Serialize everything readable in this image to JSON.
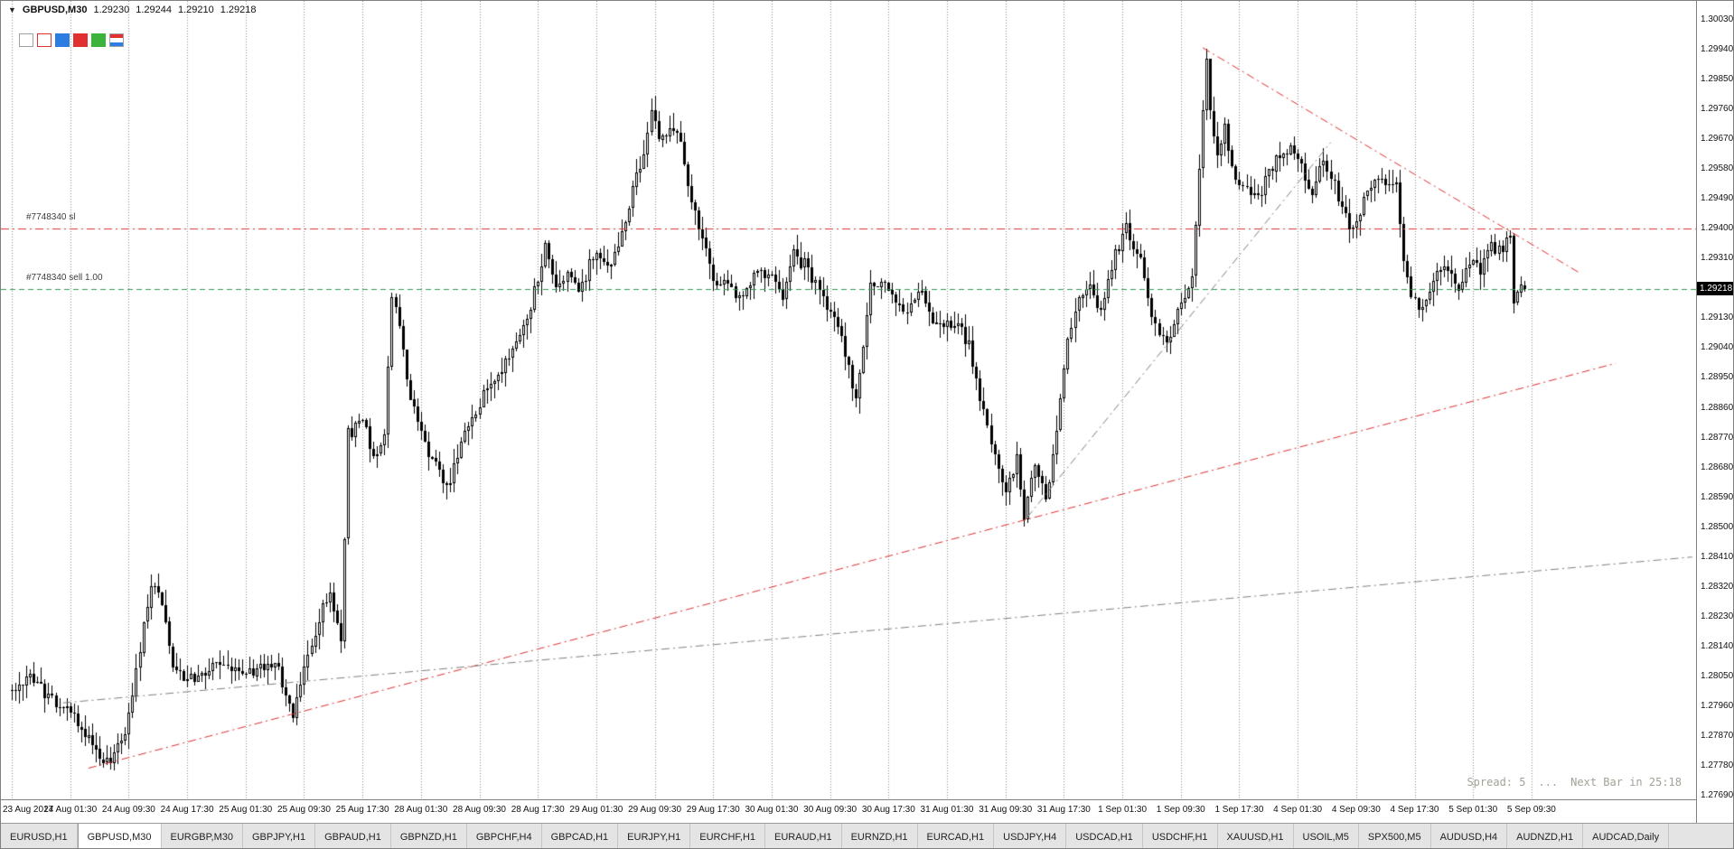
{
  "header": {
    "collapse_icon": "▼",
    "symbol_period": "GBPUSD,M30",
    "open": "1.29230",
    "high": "1.29244",
    "low": "1.29210",
    "close": "1.29218"
  },
  "swatches": [
    {
      "name": "swatch-white",
      "type": "solid",
      "fill": "#ffffff",
      "border": "#a0a0a0"
    },
    {
      "name": "swatch-red-outline",
      "type": "solid",
      "fill": "#ffffff",
      "border": "#e03030"
    },
    {
      "name": "swatch-blue",
      "type": "solid",
      "fill": "#2b7de1",
      "border": "#2b7de1"
    },
    {
      "name": "swatch-red",
      "type": "solid",
      "fill": "#e03030",
      "border": "#e03030"
    },
    {
      "name": "swatch-green",
      "type": "solid",
      "fill": "#3cb43c",
      "border": "#3cb43c"
    },
    {
      "name": "swatch-striped",
      "type": "striped",
      "stripes": [
        "#e03030",
        "#ffffff",
        "#2b7de1"
      ],
      "border": "#a0a0a0"
    }
  ],
  "price_axis": {
    "ticks": [
      "1.30030",
      "1.29940",
      "1.29850",
      "1.29760",
      "1.29670",
      "1.29580",
      "1.29490",
      "1.29400",
      "1.29310",
      "1.29220",
      "1.29130",
      "1.29040",
      "1.28950",
      "1.28860",
      "1.28770",
      "1.28680",
      "1.28590",
      "1.28500",
      "1.28410",
      "1.28320",
      "1.28230",
      "1.28140",
      "1.28050",
      "1.27960",
      "1.27870",
      "1.27780",
      "1.27690"
    ],
    "current_price": "1.29218"
  },
  "time_axis": {
    "labels": [
      "23 Aug 2017",
      "24 Aug 01:30",
      "24 Aug 09:30",
      "24 Aug 17:30",
      "25 Aug 01:30",
      "25 Aug 09:30",
      "25 Aug 17:30",
      "28 Aug 01:30",
      "28 Aug 09:30",
      "28 Aug 17:30",
      "29 Aug 01:30",
      "29 Aug 09:30",
      "29 Aug 17:30",
      "30 Aug 01:30",
      "30 Aug 09:30",
      "30 Aug 17:30",
      "31 Aug 01:30",
      "31 Aug 09:30",
      "31 Aug 17:30",
      "1 Sep 01:30",
      "1 Sep 09:30",
      "1 Sep 17:30",
      "4 Sep 01:30",
      "4 Sep 09:30",
      "4 Sep 17:30",
      "5 Sep 01:30",
      "5 Sep 09:30"
    ]
  },
  "orders": [
    {
      "id_label": "#7748340 sl",
      "price": 1.294,
      "color": "#d83434",
      "dash": "dashdot"
    },
    {
      "id_label": "#7748340 sell 1.00",
      "price": 1.29218,
      "color": "#2e9e4f",
      "dash": "dash"
    }
  ],
  "status": {
    "spread": "Spread: 5",
    "separator": "...",
    "next_bar": "Next Bar in 25:18"
  },
  "tabs": {
    "active": "GBPUSD,M30",
    "items": [
      "EURUSD,H1",
      "GBPUSD,M30",
      "EURGBP,M30",
      "GBPJPY,H1",
      "GBPAUD,H1",
      "GBPNZD,H1",
      "GBPCHF,H4",
      "GBPCAD,H1",
      "EURJPY,H1",
      "EURCHF,H1",
      "EURAUD,H1",
      "EURNZD,H1",
      "EURCAD,H1",
      "USDJPY,H4",
      "USDCAD,H1",
      "USDCHF,H1",
      "XAUUSD,H1",
      "USOIL,M5",
      "SPX500,M5",
      "AUDUSD,H4",
      "AUDNZD,H1",
      "AUDCAD,Daily"
    ]
  },
  "chart_data": {
    "type": "candlestick",
    "symbol": "GBPUSD",
    "timeframe": "M30",
    "title": "GBPUSD,M30",
    "price_min": 1.2769,
    "price_max": 1.3003,
    "price_tick_step": 0.0009,
    "time_start": "23 Aug 2017",
    "time_end": "5 Sep 09:30",
    "grid": "vertical-dotted",
    "legend_position": "none",
    "candle_count": 415,
    "last_bar": {
      "open": 1.2923,
      "high": 1.29244,
      "low": 1.2921,
      "close": 1.29218
    },
    "colors": {
      "bg": "#ffffff",
      "outline": "#000000",
      "bull": "#ffffff",
      "bear": "#000000",
      "grid": "#8c8c8c"
    },
    "price_path": [
      [
        0,
        1.2801
      ],
      [
        6,
        1.2805
      ],
      [
        12,
        1.2798
      ],
      [
        20,
        1.279
      ],
      [
        26,
        1.2777
      ],
      [
        32,
        1.2788
      ],
      [
        39,
        1.2833
      ],
      [
        42,
        1.2828
      ],
      [
        45,
        1.2808
      ],
      [
        50,
        1.2804
      ],
      [
        57,
        1.2808
      ],
      [
        65,
        1.2805
      ],
      [
        73,
        1.2809
      ],
      [
        78,
        1.2794
      ],
      [
        83,
        1.2815
      ],
      [
        88,
        1.2832
      ],
      [
        91,
        1.2815
      ],
      [
        93,
        1.2878
      ],
      [
        97,
        1.2882
      ],
      [
        100,
        1.2872
      ],
      [
        103,
        1.2878
      ],
      [
        105,
        1.292
      ],
      [
        107,
        1.2912
      ],
      [
        110,
        1.2888
      ],
      [
        116,
        1.287
      ],
      [
        120,
        1.2862
      ],
      [
        126,
        1.288
      ],
      [
        130,
        1.289
      ],
      [
        135,
        1.2898
      ],
      [
        139,
        1.2905
      ],
      [
        142,
        1.2912
      ],
      [
        147,
        1.2935
      ],
      [
        150,
        1.2922
      ],
      [
        153,
        1.2928
      ],
      [
        156,
        1.292
      ],
      [
        160,
        1.2932
      ],
      [
        165,
        1.2928
      ],
      [
        168,
        1.294
      ],
      [
        171,
        1.2952
      ],
      [
        174,
        1.2962
      ],
      [
        176,
        1.2976
      ],
      [
        178,
        1.2965
      ],
      [
        181,
        1.2972
      ],
      [
        184,
        1.2968
      ],
      [
        187,
        1.2948
      ],
      [
        190,
        1.2938
      ],
      [
        193,
        1.2925
      ],
      [
        197,
        1.2922
      ],
      [
        200,
        1.2918
      ],
      [
        204,
        1.2925
      ],
      [
        209,
        1.2928
      ],
      [
        212,
        1.292
      ],
      [
        215,
        1.2932
      ],
      [
        219,
        1.2928
      ],
      [
        223,
        1.2918
      ],
      [
        227,
        1.2912
      ],
      [
        232,
        1.2888
      ],
      [
        236,
        1.2922
      ],
      [
        240,
        1.2925
      ],
      [
        245,
        1.2915
      ],
      [
        250,
        1.292
      ],
      [
        254,
        1.291
      ],
      [
        259,
        1.2912
      ],
      [
        263,
        1.2905
      ],
      [
        266,
        1.289
      ],
      [
        269,
        1.2875
      ],
      [
        273,
        1.2862
      ],
      [
        276,
        1.287
      ],
      [
        278,
        1.2853
      ],
      [
        281,
        1.2868
      ],
      [
        284,
        1.2858
      ],
      [
        287,
        1.288
      ],
      [
        290,
        1.2905
      ],
      [
        293,
        1.2918
      ],
      [
        296,
        1.2922
      ],
      [
        299,
        1.2915
      ],
      [
        303,
        1.2932
      ],
      [
        306,
        1.294
      ],
      [
        310,
        1.293
      ],
      [
        314,
        1.291
      ],
      [
        317,
        1.2905
      ],
      [
        321,
        1.2918
      ],
      [
        324,
        1.2925
      ],
      [
        326,
        1.296
      ],
      [
        328,
        1.2993
      ],
      [
        329,
        1.2975
      ],
      [
        331,
        1.2962
      ],
      [
        333,
        1.297
      ],
      [
        336,
        1.2955
      ],
      [
        339,
        1.2952
      ],
      [
        342,
        1.2948
      ],
      [
        345,
        1.2958
      ],
      [
        348,
        1.2962
      ],
      [
        351,
        1.2965
      ],
      [
        354,
        1.2958
      ],
      [
        357,
        1.2952
      ],
      [
        360,
        1.296
      ],
      [
        363,
        1.2955
      ],
      [
        365,
        1.2945
      ],
      [
        368,
        1.294
      ],
      [
        371,
        1.2948
      ],
      [
        374,
        1.2955
      ],
      [
        377,
        1.2952
      ],
      [
        380,
        1.2955
      ],
      [
        382,
        1.293
      ],
      [
        384,
        1.292
      ],
      [
        387,
        1.2915
      ],
      [
        390,
        1.2925
      ],
      [
        394,
        1.2928
      ],
      [
        397,
        1.292
      ],
      [
        400,
        1.293
      ],
      [
        403,
        1.2928
      ],
      [
        406,
        1.2935
      ],
      [
        409,
        1.2932
      ],
      [
        411,
        1.294
      ],
      [
        412,
        1.2918
      ],
      [
        414,
        1.29218
      ]
    ],
    "trendlines": [
      {
        "name": "descending-resistance",
        "color": "#e03030",
        "style": "dashdot",
        "i1": 326,
        "p1": 1.29946,
        "i2": 429,
        "p2": 1.29268
      },
      {
        "name": "ascending-support",
        "color": "#e03030",
        "style": "dashdot",
        "i1": 21,
        "p1": 1.27773,
        "i2": 439,
        "p2": 1.28994
      },
      {
        "name": "gray-steep-trendline",
        "color": "#808080",
        "style": "dashdot",
        "i1": 278,
        "p1": 1.2853,
        "i2": 361,
        "p2": 1.2966
      },
      {
        "name": "gray-shallow-trendline",
        "color": "#808080",
        "style": "dashdot",
        "i1": 14,
        "p1": 1.2797,
        "i2": 460,
        "p2": 1.2841
      }
    ],
    "horizontal_lines": [
      {
        "label": "#7748340 sl",
        "price": 1.294,
        "color": "#d83434"
      },
      {
        "label": "#7748340 sell 1.00",
        "price": 1.29218,
        "color": "#2e9e4f"
      }
    ]
  }
}
